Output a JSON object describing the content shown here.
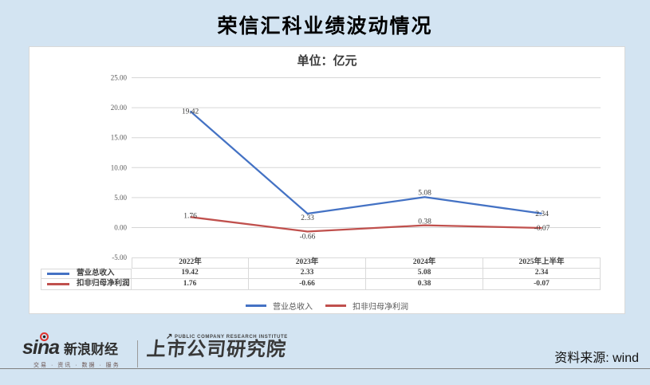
{
  "header": {
    "title": "荣信汇科业绩波动情况"
  },
  "chart_data": {
    "type": "line",
    "title": "荣信汇科业绩波动情况",
    "subtitle": "单位：亿元",
    "categories": [
      "2022年",
      "2023年",
      "2024年",
      "2025年上半年"
    ],
    "series": [
      {
        "name": "营业总收入",
        "color": "#4472c4",
        "values": [
          19.42,
          2.33,
          5.08,
          2.34
        ],
        "labels": [
          "19.42",
          "2.33",
          "5.08",
          "2.34"
        ]
      },
      {
        "name": "扣非归母净利润",
        "color": "#c0504d",
        "values": [
          1.76,
          -0.66,
          0.38,
          -0.07
        ],
        "labels": [
          "1.76",
          "-0.66",
          "0.38",
          "-0.07"
        ]
      }
    ],
    "ylim": [
      -5,
      25
    ],
    "yticks": [
      {
        "value": 25,
        "label": "25.00"
      },
      {
        "value": 20,
        "label": "20.00"
      },
      {
        "value": 15,
        "label": "15.00"
      },
      {
        "value": 10,
        "label": "10.00"
      },
      {
        "value": 5,
        "label": "5.00"
      },
      {
        "value": 0,
        "label": "0.00"
      },
      {
        "value": -5,
        "label": "-5.00"
      }
    ],
    "grid": true,
    "legend_position": "bottom",
    "show_data_table": true
  },
  "footer": {
    "sina": {
      "brand": "sina",
      "name": "新浪财经",
      "tagline": "交易 · 资讯 · 数据 · 服务"
    },
    "institute": {
      "caption": "PUBLIC COMPANY RESEARCH INSTITUTE",
      "name": "上市公司研究院"
    },
    "source": "资料来源: wind"
  }
}
